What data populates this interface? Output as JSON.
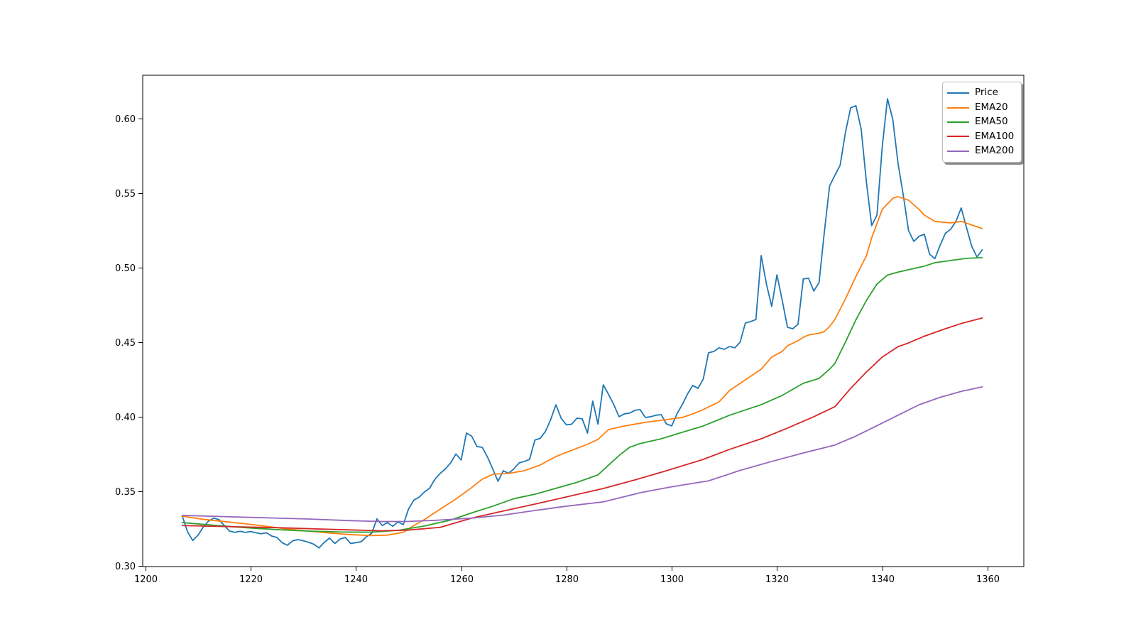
{
  "chart_data": {
    "type": "line",
    "title": "",
    "xlabel": "",
    "ylabel": "",
    "grid": false,
    "legend_position": "upper-right",
    "background_color": "#ffffff",
    "spine_color": "#000000",
    "tick_label_color": "#000000",
    "xlim": [
      1199.5,
      1366.9
    ],
    "ylim": [
      0.2995,
      0.629
    ],
    "xticks": [
      1200,
      1220,
      1240,
      1260,
      1280,
      1300,
      1320,
      1340,
      1360
    ],
    "xtick_labels": [
      "1200",
      "1220",
      "1240",
      "1260",
      "1280",
      "1300",
      "1320",
      "1340",
      "1360"
    ],
    "yticks": [
      0.3,
      0.35,
      0.4,
      0.45,
      0.5,
      0.55,
      0.6
    ],
    "ytick_labels": [
      "0.30",
      "0.35",
      "0.40",
      "0.45",
      "0.50",
      "0.55",
      "0.60"
    ],
    "series": [
      {
        "name": "Price",
        "color": "#1f77b4",
        "x_start": 1207,
        "x_step": 1,
        "values": [
          0.3335,
          0.323,
          0.317,
          0.3205,
          0.326,
          0.33,
          0.332,
          0.331,
          0.327,
          0.3233,
          0.3225,
          0.3232,
          0.3224,
          0.323,
          0.3222,
          0.3215,
          0.3222,
          0.32,
          0.319,
          0.3155,
          0.3138,
          0.3168,
          0.3176,
          0.3168,
          0.3158,
          0.3145,
          0.312,
          0.3158,
          0.3186,
          0.315,
          0.318,
          0.319,
          0.315,
          0.3155,
          0.3162,
          0.3195,
          0.3218,
          0.3315,
          0.327,
          0.329,
          0.3265,
          0.3295,
          0.3276,
          0.3381,
          0.344,
          0.346,
          0.3495,
          0.352,
          0.358,
          0.3619,
          0.365,
          0.369,
          0.375,
          0.371,
          0.389,
          0.387,
          0.38,
          0.3795,
          0.373,
          0.365,
          0.3567,
          0.3638,
          0.362,
          0.365,
          0.369,
          0.37,
          0.3714,
          0.3843,
          0.3855,
          0.39,
          0.398,
          0.408,
          0.399,
          0.3945,
          0.395,
          0.399,
          0.3986,
          0.389,
          0.4105,
          0.395,
          0.4214,
          0.415,
          0.4081,
          0.4,
          0.4019,
          0.4024,
          0.4043,
          0.4048,
          0.3995,
          0.4,
          0.401,
          0.4014,
          0.3952,
          0.3938,
          0.4019,
          0.4081,
          0.4152,
          0.421,
          0.419,
          0.4253,
          0.4429,
          0.4438,
          0.4462,
          0.4452,
          0.4471,
          0.4462,
          0.45,
          0.4629,
          0.4638,
          0.4652,
          0.5081,
          0.489,
          0.474,
          0.4952,
          0.478,
          0.46,
          0.459,
          0.462,
          0.4924,
          0.4929,
          0.4843,
          0.49,
          0.5238,
          0.5548,
          0.5619,
          0.5686,
          0.5905,
          0.6071,
          0.6086,
          0.5929,
          0.5571,
          0.5281,
          0.5352,
          0.581,
          0.6133,
          0.5995,
          0.57,
          0.5486,
          0.5248,
          0.5176,
          0.521,
          0.5224,
          0.509,
          0.506,
          0.515,
          0.523,
          0.5257,
          0.531,
          0.54,
          0.527,
          0.5143,
          0.5071,
          0.5119
        ]
      },
      {
        "name": "EMA20",
        "color": "#ff7f0e",
        "points": [
          [
            1207,
            0.3333
          ],
          [
            1211,
            0.3312
          ],
          [
            1215,
            0.3297
          ],
          [
            1219,
            0.3282
          ],
          [
            1223,
            0.3265
          ],
          [
            1227,
            0.3247
          ],
          [
            1231,
            0.3233
          ],
          [
            1235,
            0.322
          ],
          [
            1239,
            0.3209
          ],
          [
            1243,
            0.3203
          ],
          [
            1246,
            0.3206
          ],
          [
            1249,
            0.3225
          ],
          [
            1251,
            0.327
          ],
          [
            1253,
            0.331
          ],
          [
            1256,
            0.338
          ],
          [
            1259,
            0.3448
          ],
          [
            1262,
            0.3525
          ],
          [
            1264,
            0.3581
          ],
          [
            1266,
            0.3614
          ],
          [
            1269,
            0.362
          ],
          [
            1272,
            0.3638
          ],
          [
            1275,
            0.3676
          ],
          [
            1278,
            0.3733
          ],
          [
            1281,
            0.3775
          ],
          [
            1284,
            0.3815
          ],
          [
            1286,
            0.3848
          ],
          [
            1288,
            0.3914
          ],
          [
            1291,
            0.3938
          ],
          [
            1295,
            0.3962
          ],
          [
            1298,
            0.3976
          ],
          [
            1302,
            0.3995
          ],
          [
            1304,
            0.4019
          ],
          [
            1306,
            0.4048
          ],
          [
            1309,
            0.41
          ],
          [
            1311,
            0.4176
          ],
          [
            1314,
            0.4248
          ],
          [
            1317,
            0.4319
          ],
          [
            1319,
            0.44
          ],
          [
            1321,
            0.4438
          ],
          [
            1322,
            0.4476
          ],
          [
            1324,
            0.451
          ],
          [
            1325,
            0.4533
          ],
          [
            1326,
            0.4548
          ],
          [
            1328,
            0.456
          ],
          [
            1329,
            0.4571
          ],
          [
            1330,
            0.4605
          ],
          [
            1331,
            0.4652
          ],
          [
            1333,
            0.479
          ],
          [
            1335,
            0.494
          ],
          [
            1337,
            0.508
          ],
          [
            1338,
            0.52
          ],
          [
            1340,
            0.539
          ],
          [
            1342,
            0.5465
          ],
          [
            1343,
            0.5476
          ],
          [
            1345,
            0.5452
          ],
          [
            1347,
            0.539
          ],
          [
            1348,
            0.5352
          ],
          [
            1350,
            0.531
          ],
          [
            1353,
            0.53
          ],
          [
            1355,
            0.531
          ],
          [
            1357,
            0.5286
          ],
          [
            1359,
            0.5262
          ]
        ]
      },
      {
        "name": "EMA50",
        "color": "#2ca02c",
        "points": [
          [
            1207,
            0.329
          ],
          [
            1213,
            0.3272
          ],
          [
            1219,
            0.3256
          ],
          [
            1225,
            0.3243
          ],
          [
            1231,
            0.3233
          ],
          [
            1237,
            0.3227
          ],
          [
            1243,
            0.3226
          ],
          [
            1248,
            0.3238
          ],
          [
            1253,
            0.3267
          ],
          [
            1258,
            0.3307
          ],
          [
            1262,
            0.3355
          ],
          [
            1266,
            0.34
          ],
          [
            1270,
            0.345
          ],
          [
            1274,
            0.348
          ],
          [
            1278,
            0.352
          ],
          [
            1282,
            0.356
          ],
          [
            1286,
            0.361
          ],
          [
            1290,
            0.374
          ],
          [
            1292,
            0.3795
          ],
          [
            1294,
            0.382
          ],
          [
            1298,
            0.3852
          ],
          [
            1301,
            0.3885
          ],
          [
            1306,
            0.3938
          ],
          [
            1311,
            0.401
          ],
          [
            1317,
            0.4081
          ],
          [
            1321,
            0.4143
          ],
          [
            1325,
            0.4224
          ],
          [
            1328,
            0.4257
          ],
          [
            1330,
            0.4319
          ],
          [
            1331,
            0.4357
          ],
          [
            1333,
            0.45
          ],
          [
            1335,
            0.465
          ],
          [
            1337,
            0.478
          ],
          [
            1339,
            0.489
          ],
          [
            1341,
            0.495
          ],
          [
            1343,
            0.497
          ],
          [
            1345,
            0.4986
          ],
          [
            1348,
            0.501
          ],
          [
            1350,
            0.5033
          ],
          [
            1353,
            0.5048
          ],
          [
            1356,
            0.5062
          ],
          [
            1359,
            0.5067
          ]
        ]
      },
      {
        "name": "EMA100",
        "color": "#d62728",
        "points": [
          [
            1207,
            0.327
          ],
          [
            1216,
            0.3263
          ],
          [
            1226,
            0.3255
          ],
          [
            1234,
            0.3246
          ],
          [
            1240,
            0.324
          ],
          [
            1245,
            0.3235
          ],
          [
            1250,
            0.324
          ],
          [
            1256,
            0.3258
          ],
          [
            1262,
            0.332
          ],
          [
            1267,
            0.336
          ],
          [
            1274,
            0.3414
          ],
          [
            1280,
            0.3462
          ],
          [
            1287,
            0.3519
          ],
          [
            1293,
            0.3576
          ],
          [
            1299,
            0.3638
          ],
          [
            1306,
            0.3714
          ],
          [
            1311,
            0.3781
          ],
          [
            1317,
            0.3852
          ],
          [
            1322,
            0.3924
          ],
          [
            1327,
            0.4
          ],
          [
            1331,
            0.4067
          ],
          [
            1334,
            0.419
          ],
          [
            1337,
            0.43
          ],
          [
            1340,
            0.44
          ],
          [
            1343,
            0.447
          ],
          [
            1345,
            0.4495
          ],
          [
            1348,
            0.454
          ],
          [
            1352,
            0.459
          ],
          [
            1355,
            0.4625
          ],
          [
            1359,
            0.4662
          ]
        ]
      },
      {
        "name": "EMA200",
        "color": "#9467bd",
        "points": [
          [
            1207,
            0.3338
          ],
          [
            1215,
            0.333
          ],
          [
            1223,
            0.3322
          ],
          [
            1231,
            0.3314
          ],
          [
            1239,
            0.3303
          ],
          [
            1245,
            0.3297
          ],
          [
            1250,
            0.3298
          ],
          [
            1255,
            0.3305
          ],
          [
            1262,
            0.332
          ],
          [
            1268,
            0.334
          ],
          [
            1274,
            0.3371
          ],
          [
            1280,
            0.34
          ],
          [
            1287,
            0.3429
          ],
          [
            1294,
            0.349
          ],
          [
            1300,
            0.353
          ],
          [
            1307,
            0.357
          ],
          [
            1313,
            0.364
          ],
          [
            1319,
            0.37
          ],
          [
            1325,
            0.3757
          ],
          [
            1331,
            0.381
          ],
          [
            1335,
            0.387
          ],
          [
            1339,
            0.394
          ],
          [
            1343,
            0.401
          ],
          [
            1347,
            0.408
          ],
          [
            1351,
            0.413
          ],
          [
            1355,
            0.417
          ],
          [
            1359,
            0.42
          ]
        ]
      }
    ]
  },
  "legend": {
    "items": [
      {
        "label": "Price"
      },
      {
        "label": "EMA20"
      },
      {
        "label": "EMA50"
      },
      {
        "label": "EMA100"
      },
      {
        "label": "EMA200"
      }
    ]
  }
}
